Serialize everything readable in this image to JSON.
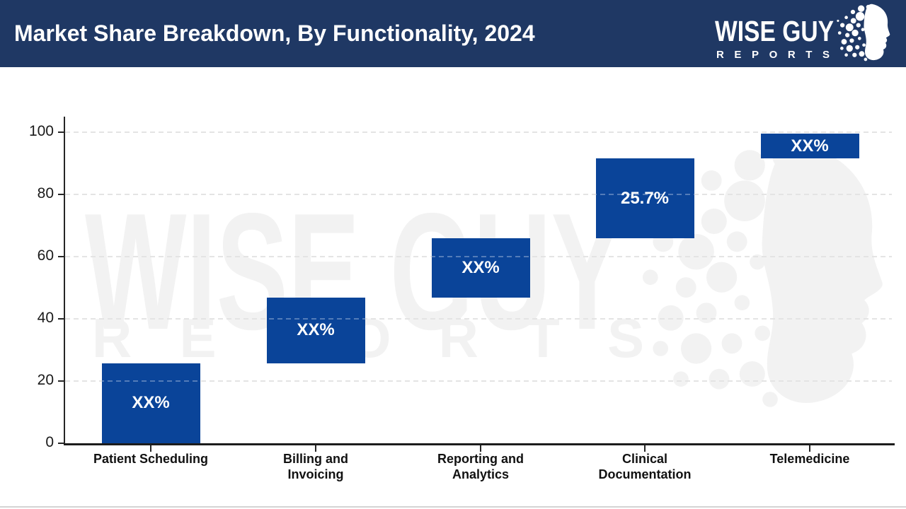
{
  "header": {
    "title": "Market Share Breakdown, By Functionality, 2024"
  },
  "logo": {
    "name": "WISE GUY",
    "sub": "REPORTS"
  },
  "watermark": {
    "line1": "WISE GUY",
    "line2": "REPORTS"
  },
  "colors": {
    "header_bg": "#1f3864",
    "title_text": "#ffffff",
    "bar_fill": "#0a4499",
    "bar_label_text": "#ffffff",
    "grid": "#d9d9d9",
    "axis": "#262626",
    "tick_text": "#1a1a1a",
    "watermark": "#f2f2f2",
    "bottom_line": "#d4d4d4"
  },
  "chart_data": {
    "type": "bar",
    "subtype": "floating-waterfall",
    "title": "Market Share Breakdown, By Functionality, 2024",
    "categories": [
      "Patient Scheduling",
      "Billing and Invoicing",
      "Reporting and Analytics",
      "Clinical Documentation",
      "Telemedicine"
    ],
    "category_label_lines": [
      [
        "Patient Scheduling"
      ],
      [
        "Billing and",
        "Invoicing"
      ],
      [
        "Reporting and",
        "Analytics"
      ],
      [
        "Clinical",
        "Documentation"
      ],
      [
        "Telemedicine"
      ]
    ],
    "segments": [
      {
        "category": "Patient Scheduling",
        "start": 0,
        "end": 25.7,
        "label": "XX%"
      },
      {
        "category": "Billing and Invoicing",
        "start": 25.7,
        "end": 46.9,
        "label": "XX%"
      },
      {
        "category": "Reporting and Analytics",
        "start": 46.9,
        "end": 65.8,
        "label": "XX%"
      },
      {
        "category": "Clinical Documentation",
        "start": 65.8,
        "end": 91.5,
        "label": "25.7%"
      },
      {
        "category": "Telemedicine",
        "start": 91.5,
        "end": 99.6,
        "label": "XX%"
      }
    ],
    "yticks": [
      0,
      20,
      40,
      60,
      80,
      100
    ],
    "ylim": [
      0,
      105
    ],
    "xlabel": "",
    "ylabel": "",
    "grid": "horizontal-dashed",
    "legend": "none"
  }
}
